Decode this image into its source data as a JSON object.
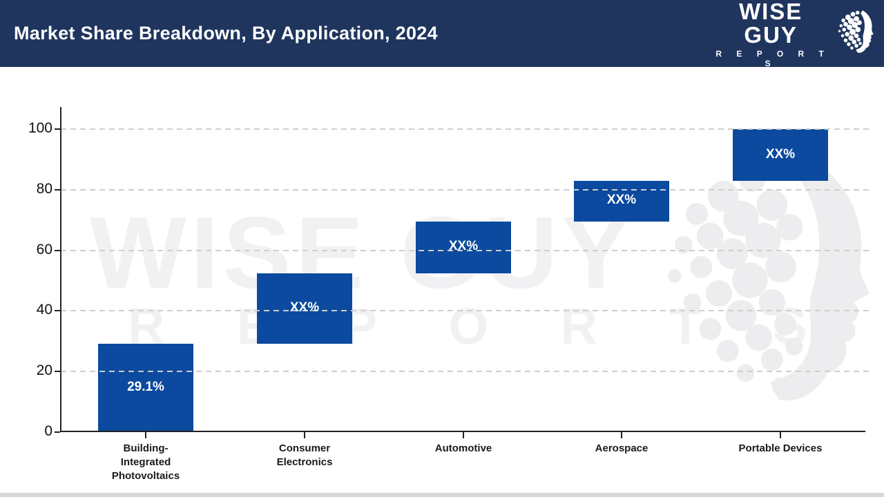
{
  "header": {
    "title": "Market Share Breakdown, By Application, 2024",
    "logo_line1": "WISE GUY",
    "logo_line2": "REPORTS"
  },
  "watermark": {
    "line1": "WISE GUY",
    "line2": "R E P O R T S"
  },
  "chart_data": {
    "type": "bar",
    "subtype": "waterfall",
    "title": "Market Share Breakdown, By Application, 2024",
    "categories": [
      "Building-Integrated Photovoltaics",
      "Consumer Electronics",
      "Automotive",
      "Aerospace",
      "Portable Devices"
    ],
    "category_lines": [
      [
        "Building-",
        "Integrated",
        "Photovoltaics"
      ],
      [
        "Consumer",
        "Electronics"
      ],
      [
        "Automotive"
      ],
      [
        "Aerospace"
      ],
      [
        "Portable Devices"
      ]
    ],
    "segments": [
      {
        "category": "Building-Integrated Photovoltaics",
        "start": 0,
        "end": 29.1,
        "label": "29.1%"
      },
      {
        "category": "Consumer Electronics",
        "start": 29.1,
        "end": 52.4,
        "label": "XX%"
      },
      {
        "category": "Automotive",
        "start": 52.4,
        "end": 69.5,
        "label": "XX%"
      },
      {
        "category": "Aerospace",
        "start": 69.5,
        "end": 82.9,
        "label": "XX%"
      },
      {
        "category": "Portable Devices",
        "start": 82.9,
        "end": 100,
        "label": "XX%"
      }
    ],
    "yticks": [
      0,
      20,
      40,
      60,
      80,
      100
    ],
    "ylim": [
      0,
      105
    ],
    "xlabel": "",
    "ylabel": "",
    "grid": "dashed-horizontal",
    "legend": "none"
  },
  "colors": {
    "header_bg": "#1f355e",
    "bar": "#0b4a9e",
    "grid": "#cecece",
    "axis": "#222222",
    "watermark": "#f1f1f3",
    "footer": "#d8d8d8"
  },
  "icons": {
    "logo_face": "dotted-head-profile"
  }
}
